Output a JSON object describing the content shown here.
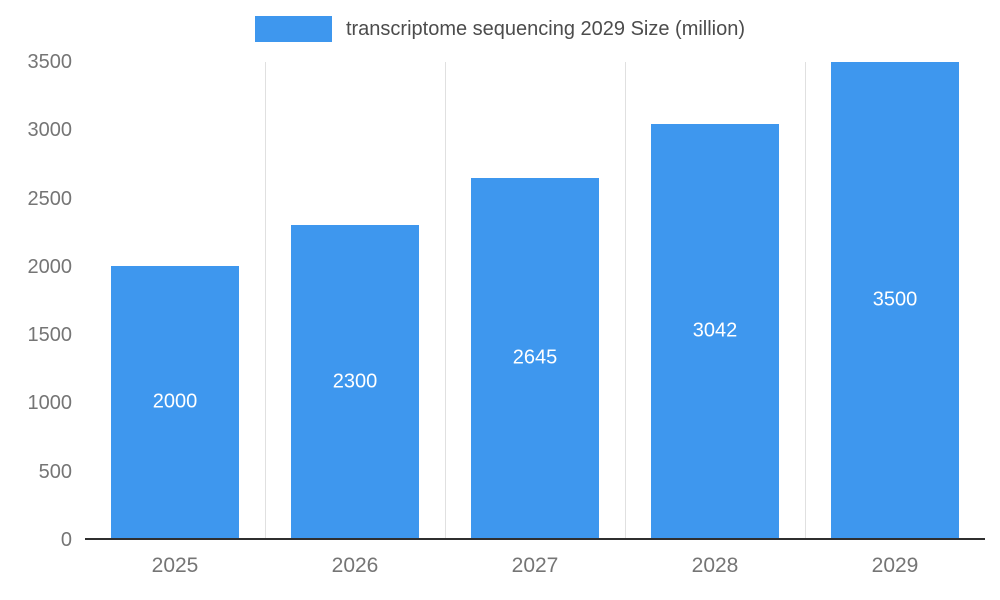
{
  "chart_data": {
    "type": "bar",
    "title": "",
    "legend": {
      "label": "transcriptome sequencing 2029 Size (million)",
      "position": "top-center"
    },
    "categories": [
      "2025",
      "2026",
      "2027",
      "2028",
      "2029"
    ],
    "values": [
      2000,
      2300,
      2645,
      3042,
      3500
    ],
    "value_labels": [
      "2000",
      "2300",
      "2645",
      "3042",
      "3500"
    ],
    "xlabel": "",
    "ylabel": "",
    "ylim": [
      0,
      3500
    ],
    "yticks": [
      0,
      500,
      1000,
      1500,
      2000,
      2500,
      3000,
      3500
    ],
    "grid": "vertical-only",
    "colors": {
      "bar": "#3e97ee",
      "value_label_text": "#ffffff",
      "axis_text": "#757575",
      "legend_text": "#4c4c4c",
      "baseline": "#2f2f2f",
      "gridline": "#e0e0e0",
      "background": "#ffffff"
    }
  }
}
